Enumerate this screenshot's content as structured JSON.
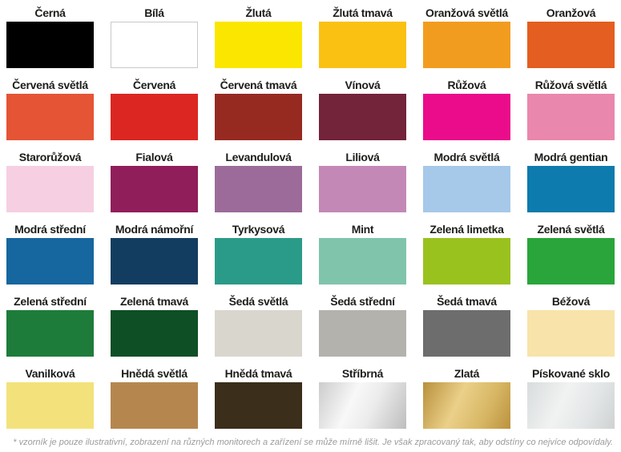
{
  "chart_data": {
    "type": "table",
    "description": "Color swatch sample chart (vzornik barev) - 36 named colors arranged in a 6x6 grid, label above each swatch",
    "columns": [
      "label",
      "color_css"
    ],
    "swatches": [
      {
        "label": "Černá",
        "css": "#000000"
      },
      {
        "label": "Bílá",
        "css": "#ffffff",
        "border": true
      },
      {
        "label": "Žlutá",
        "css": "#fbe600"
      },
      {
        "label": "Žlutá tmavá",
        "css": "#fac113"
      },
      {
        "label": "Oranžová světlá",
        "css": "#f29c1f"
      },
      {
        "label": "Oranžová",
        "css": "#e35e20"
      },
      {
        "label": "Červená světlá",
        "css": "#e55435"
      },
      {
        "label": "Červená",
        "css": "#dc2621"
      },
      {
        "label": "Červená tmavá",
        "css": "#962a21"
      },
      {
        "label": "Vínová",
        "css": "#73233a"
      },
      {
        "label": "Růžová",
        "css": "#ea0c8b"
      },
      {
        "label": "Růžová světlá",
        "css": "#ea87ac"
      },
      {
        "label": "Starorůžová",
        "css": "#f6cfe2"
      },
      {
        "label": "Fialová",
        "css": "#901e5a"
      },
      {
        "label": "Levandulová",
        "css": "#9c6b9a"
      },
      {
        "label": "Liliová",
        "css": "#c488b6"
      },
      {
        "label": "Modrá světlá",
        "css": "#a6c8e9"
      },
      {
        "label": "Modrá gentian",
        "css": "#0d7bad"
      },
      {
        "label": "Modrá střední",
        "css": "#16669f"
      },
      {
        "label": "Modrá námořní",
        "css": "#133d60"
      },
      {
        "label": "Tyrkysová",
        "css": "#2b9b89"
      },
      {
        "label": "Mint",
        "css": "#80c4ac"
      },
      {
        "label": "Zelená limetka",
        "css": "#9ac21f"
      },
      {
        "label": "Zelená světlá",
        "css": "#2aa53b"
      },
      {
        "label": "Zelená střední",
        "css": "#1e7c3a"
      },
      {
        "label": "Zelená tmavá",
        "css": "#0f4f26"
      },
      {
        "label": "Šedá světlá",
        "css": "#d9d6ce"
      },
      {
        "label": "Šedá střední",
        "css": "#b4b2ac"
      },
      {
        "label": "Šedá tmavá",
        "css": "#6d6d6d"
      },
      {
        "label": "Béžová",
        "css": "#f8e3aa"
      },
      {
        "label": "Vanilková",
        "css": "#f3e27b"
      },
      {
        "label": "Hnědá světlá",
        "css": "#b5874f"
      },
      {
        "label": "Hnědá tmavá",
        "css": "#3b2e1b"
      },
      {
        "label": "Stříbrná",
        "css": "linear-gradient(115deg, #cccccc 0%, #f8f8f8 38%, #ececec 60%, #bdbdbd 100%)"
      },
      {
        "label": "Zlatá",
        "css": "linear-gradient(115deg, #b8903c 0%, #ebd089 40%, #d8b866 70%, #bb923e 100%)"
      },
      {
        "label": "Pískované sklo",
        "css": "linear-gradient(115deg, #d9dcdc 0%, #f1f3f3 40%, #e3e6e6 70%, #ced2d3 100%)"
      }
    ]
  },
  "footnote": "* vzorník je pouze ilustrativní, zobrazení na různých monitorech a zařízení se může mírně lišit. Je však zpracovaný tak, aby odstíny co nejvíce odpovídaly."
}
